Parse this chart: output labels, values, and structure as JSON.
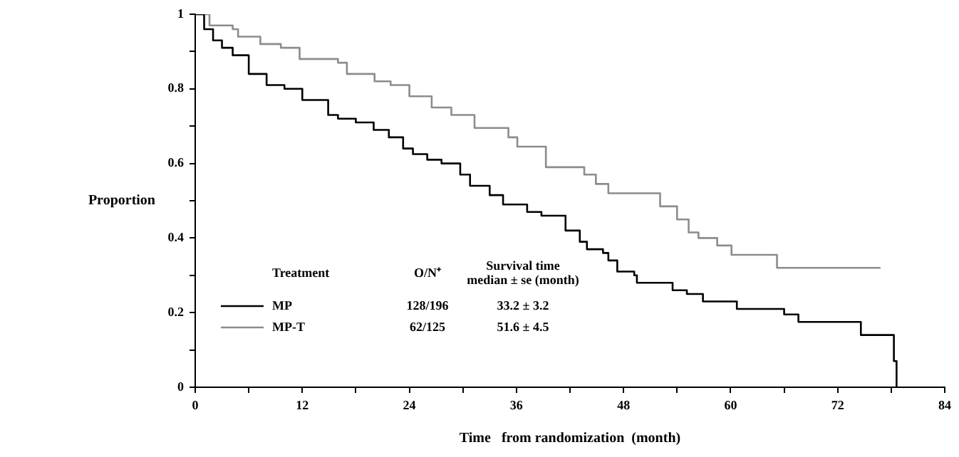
{
  "chart_data": {
    "type": "step",
    "xlabel": "Time   from randomization  (month)",
    "ylabel": "Proportion",
    "xlim": [
      0,
      84
    ],
    "xticks": [
      0,
      {
        "value": 6,
        "label": null
      },
      12,
      {
        "value": 18,
        "label": null
      },
      24,
      {
        "value": 30,
        "label": null
      },
      36,
      {
        "value": 42,
        "label": null
      },
      48,
      {
        "value": 54,
        "label": null
      },
      60,
      {
        "value": 66,
        "label": null
      },
      72,
      {
        "value": 78,
        "label": null
      },
      84
    ],
    "ylim": [
      0,
      1
    ],
    "yticks": [
      0,
      {
        "value": 0.1,
        "label": null
      },
      0.2,
      {
        "value": 0.3,
        "label": null
      },
      0.4,
      {
        "value": 0.5,
        "label": null
      },
      0.6,
      {
        "value": 0.7,
        "label": null
      },
      0.8,
      {
        "value": 0.9,
        "label": null
      },
      1
    ],
    "grid": false,
    "legend": "bottom left",
    "marker": "none",
    "line_style": "solid",
    "annotations": [
      "Treatment",
      "O/N⁺",
      "Survival time",
      "median ± se (month)",
      "128/196",
      "33.2 ± 3.2",
      "62/125",
      "51.6 ± 4.5"
    ],
    "series": [
      {
        "name": "MP",
        "color": "#000000",
        "x": [
          0,
          1,
          2,
          3,
          4.2,
          6,
          8,
          10,
          12,
          14.9,
          16,
          18,
          20,
          21.7,
          23.3,
          24.4,
          26,
          27.6,
          29.7,
          30.8,
          33,
          34.5,
          37.2,
          38.8,
          41.5,
          43.1,
          43.9,
          45.7,
          46.3,
          47.3,
          49.2,
          49.5,
          53.5,
          55.1,
          56.9,
          60.7,
          66,
          67.6,
          74.6,
          78.3,
          78.6
        ],
        "values": [
          1,
          0.96,
          0.93,
          0.91,
          0.89,
          0.84,
          0.81,
          0.8,
          0.77,
          0.73,
          0.72,
          0.71,
          0.69,
          0.67,
          0.64,
          0.625,
          0.61,
          0.6,
          0.57,
          0.54,
          0.515,
          0.49,
          0.47,
          0.46,
          0.42,
          0.39,
          0.37,
          0.36,
          0.34,
          0.31,
          0.3,
          0.28,
          0.26,
          0.25,
          0.23,
          0.21,
          0.195,
          0.175,
          0.14,
          0.07,
          0
        ]
      },
      {
        "name": "MP-T",
        "color": "#8c8c8c",
        "x": [
          0,
          1.6,
          4.2,
          4.8,
          7.3,
          9.6,
          11.7,
          16,
          17,
          20.1,
          21.9,
          24,
          26.5,
          28.7,
          31.3,
          35.1,
          36.1,
          39.3,
          43.6,
          44.9,
          46.3,
          52.1,
          54,
          55.3,
          56.4,
          58.5,
          60.1,
          65.2,
          76.8
        ],
        "values": [
          1,
          0.97,
          0.96,
          0.94,
          0.92,
          0.91,
          0.88,
          0.87,
          0.84,
          0.82,
          0.81,
          0.78,
          0.75,
          0.73,
          0.695,
          0.67,
          0.645,
          0.59,
          0.57,
          0.545,
          0.52,
          0.485,
          0.45,
          0.415,
          0.4,
          0.38,
          0.355,
          0.32,
          0.32
        ]
      }
    ]
  }
}
